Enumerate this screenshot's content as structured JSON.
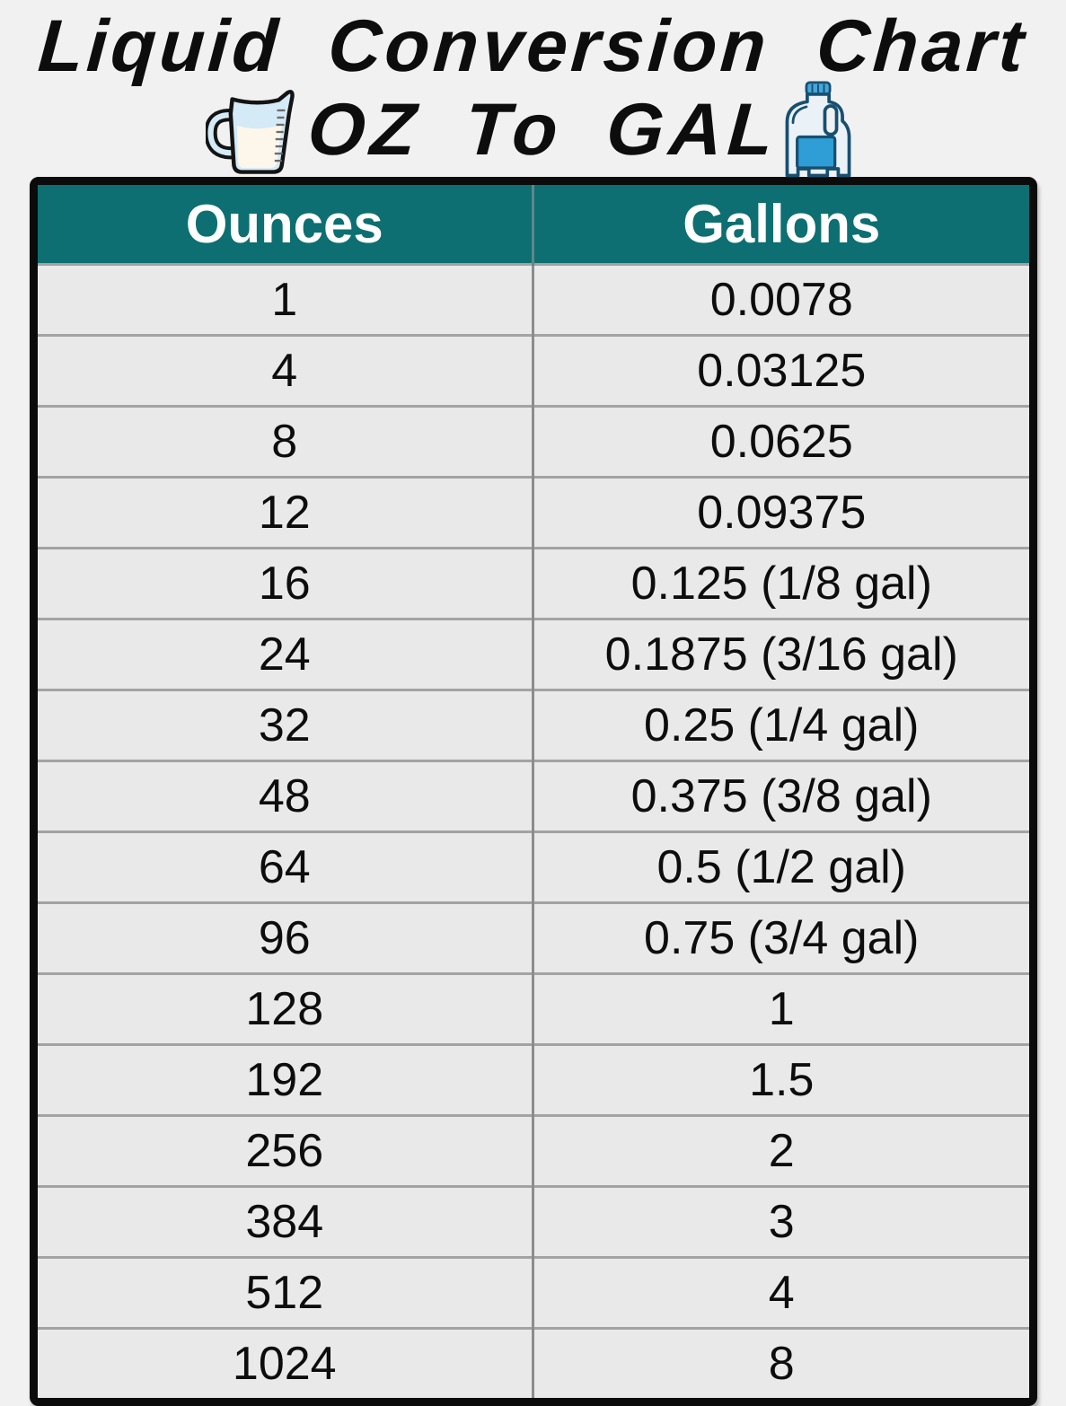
{
  "title": {
    "line1": "Liquid Conversion Chart",
    "line2": "OZ To GAL"
  },
  "icons": {
    "measuring_cup": "measuring-cup-icon",
    "gallon_jug": "gallon-jug-icon"
  },
  "colors": {
    "page_bg": "#f1f1f1",
    "header_bg": "#0d6f71",
    "header_text": "#ffffff",
    "row_bg": "#e9e9e9",
    "row_divider": "#a3a3a3",
    "column_divider": "#8c8c8c",
    "table_border": "#0b0b0b",
    "title_text": "#0d0d0d",
    "jug_blue": "#2f9ed6",
    "jug_outline": "#174f70",
    "cup_blue": "#d4eaf7"
  },
  "chart_data": {
    "type": "table",
    "title": "Liquid Conversion Chart OZ To GAL",
    "columns": [
      "Ounces",
      "Gallons"
    ],
    "rows": [
      [
        "1",
        "0.0078"
      ],
      [
        "4",
        "0.03125"
      ],
      [
        "8",
        "0.0625"
      ],
      [
        "12",
        "0.09375"
      ],
      [
        "16",
        "0.125 (1/8 gal)"
      ],
      [
        "24",
        "0.1875 (3/16 gal)"
      ],
      [
        "32",
        "0.25 (1/4 gal)"
      ],
      [
        "48",
        "0.375 (3/8 gal)"
      ],
      [
        "64",
        "0.5 (1/2 gal)"
      ],
      [
        "96",
        "0.75 (3/4 gal)"
      ],
      [
        "128",
        "1"
      ],
      [
        "192",
        "1.5"
      ],
      [
        "256",
        "2"
      ],
      [
        "384",
        "3"
      ],
      [
        "512",
        "4"
      ],
      [
        "1024",
        "8"
      ]
    ]
  }
}
